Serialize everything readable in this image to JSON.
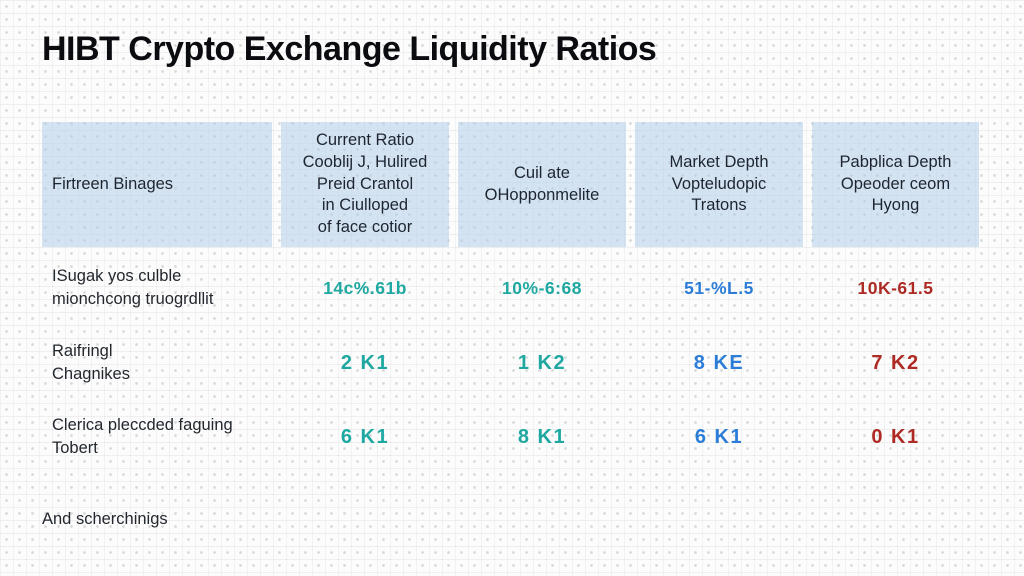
{
  "title": "HIBT Crypto Exchange Liquidity Ratios",
  "footer": "And scherchinigs",
  "colors": {
    "teal": "#1ea8a1",
    "blue": "#2b7dd8",
    "red": "#ae2a24",
    "header_bg": "#dbe8f4",
    "title_text": "#0b0c10",
    "body_text": "#23282f"
  },
  "table": {
    "headers": [
      {
        "lines": [
          "Firtreen Binages"
        ]
      },
      {
        "lines": [
          "Current Ratio",
          "Cooblij J, Hulired",
          "Preid Crantol",
          "in Ciulloped",
          "of face cotior"
        ]
      },
      {
        "lines": [
          "Cuil ate",
          "OHopponmelite"
        ]
      },
      {
        "lines": [
          "Market Depth",
          "Vopteludopic",
          "Tratons"
        ]
      },
      {
        "lines": [
          "Pabplica Depth",
          "Opeoder ceom",
          "Hyong"
        ]
      }
    ],
    "rows": [
      {
        "label_lines": [
          "ISugak yos culble",
          "mionchcong truogrdllit"
        ],
        "values": [
          {
            "text": "14c%.61b",
            "color": "teal"
          },
          {
            "text": "10%-6:68",
            "color": "teal"
          },
          {
            "text": "51-%L.5",
            "color": "blue"
          },
          {
            "text": "10K-61.5",
            "color": "red"
          }
        ]
      },
      {
        "label_lines": [
          "Raifringl",
          "Chagnikes"
        ],
        "values": [
          {
            "text": "2 K1",
            "color": "teal"
          },
          {
            "text": "1 K2",
            "color": "teal"
          },
          {
            "text": "8 KE",
            "color": "blue"
          },
          {
            "text": "7 K2",
            "color": "red"
          }
        ]
      },
      {
        "label_lines": [
          "Clerica pleccded faguing",
          "Tobert"
        ],
        "values": [
          {
            "text": "6 K1",
            "color": "teal"
          },
          {
            "text": "8 K1",
            "color": "teal"
          },
          {
            "text": "6 K1",
            "color": "blue"
          },
          {
            "text": "0 K1",
            "color": "red"
          }
        ]
      }
    ]
  },
  "chart_data": {
    "type": "table",
    "title": "HIBT Crypto Exchange Liquidity Ratios",
    "columns": [
      "Firtreen Binages",
      "Current Ratio Cooblij J, Hulired Preid Crantol in Ciulloped of face cotior",
      "Cuil ate OHopponmelite",
      "Market Depth Vopteludopic Tratons",
      "Pabplica Depth Opeoder ceom Hyong"
    ],
    "rows": [
      [
        "ISugak yos culble mionchcong truogrdllit",
        "14c%.61b",
        "10%-6:68",
        "51-%L.5",
        "10K-61.5"
      ],
      [
        "Raifringl Chagnikes",
        "2 K1",
        "1 K2",
        "8 KE",
        "7 K2"
      ],
      [
        "Clerica pleccded faguing Tobert",
        "6 K1",
        "8 K1",
        "6 K1",
        "0 K1"
      ]
    ],
    "note": "And scherchinigs",
    "layout": {
      "grid_background": true,
      "header_fill": "#dbe8f4",
      "value_colors_by_column": [
        "teal",
        "teal",
        "blue",
        "red"
      ]
    }
  }
}
